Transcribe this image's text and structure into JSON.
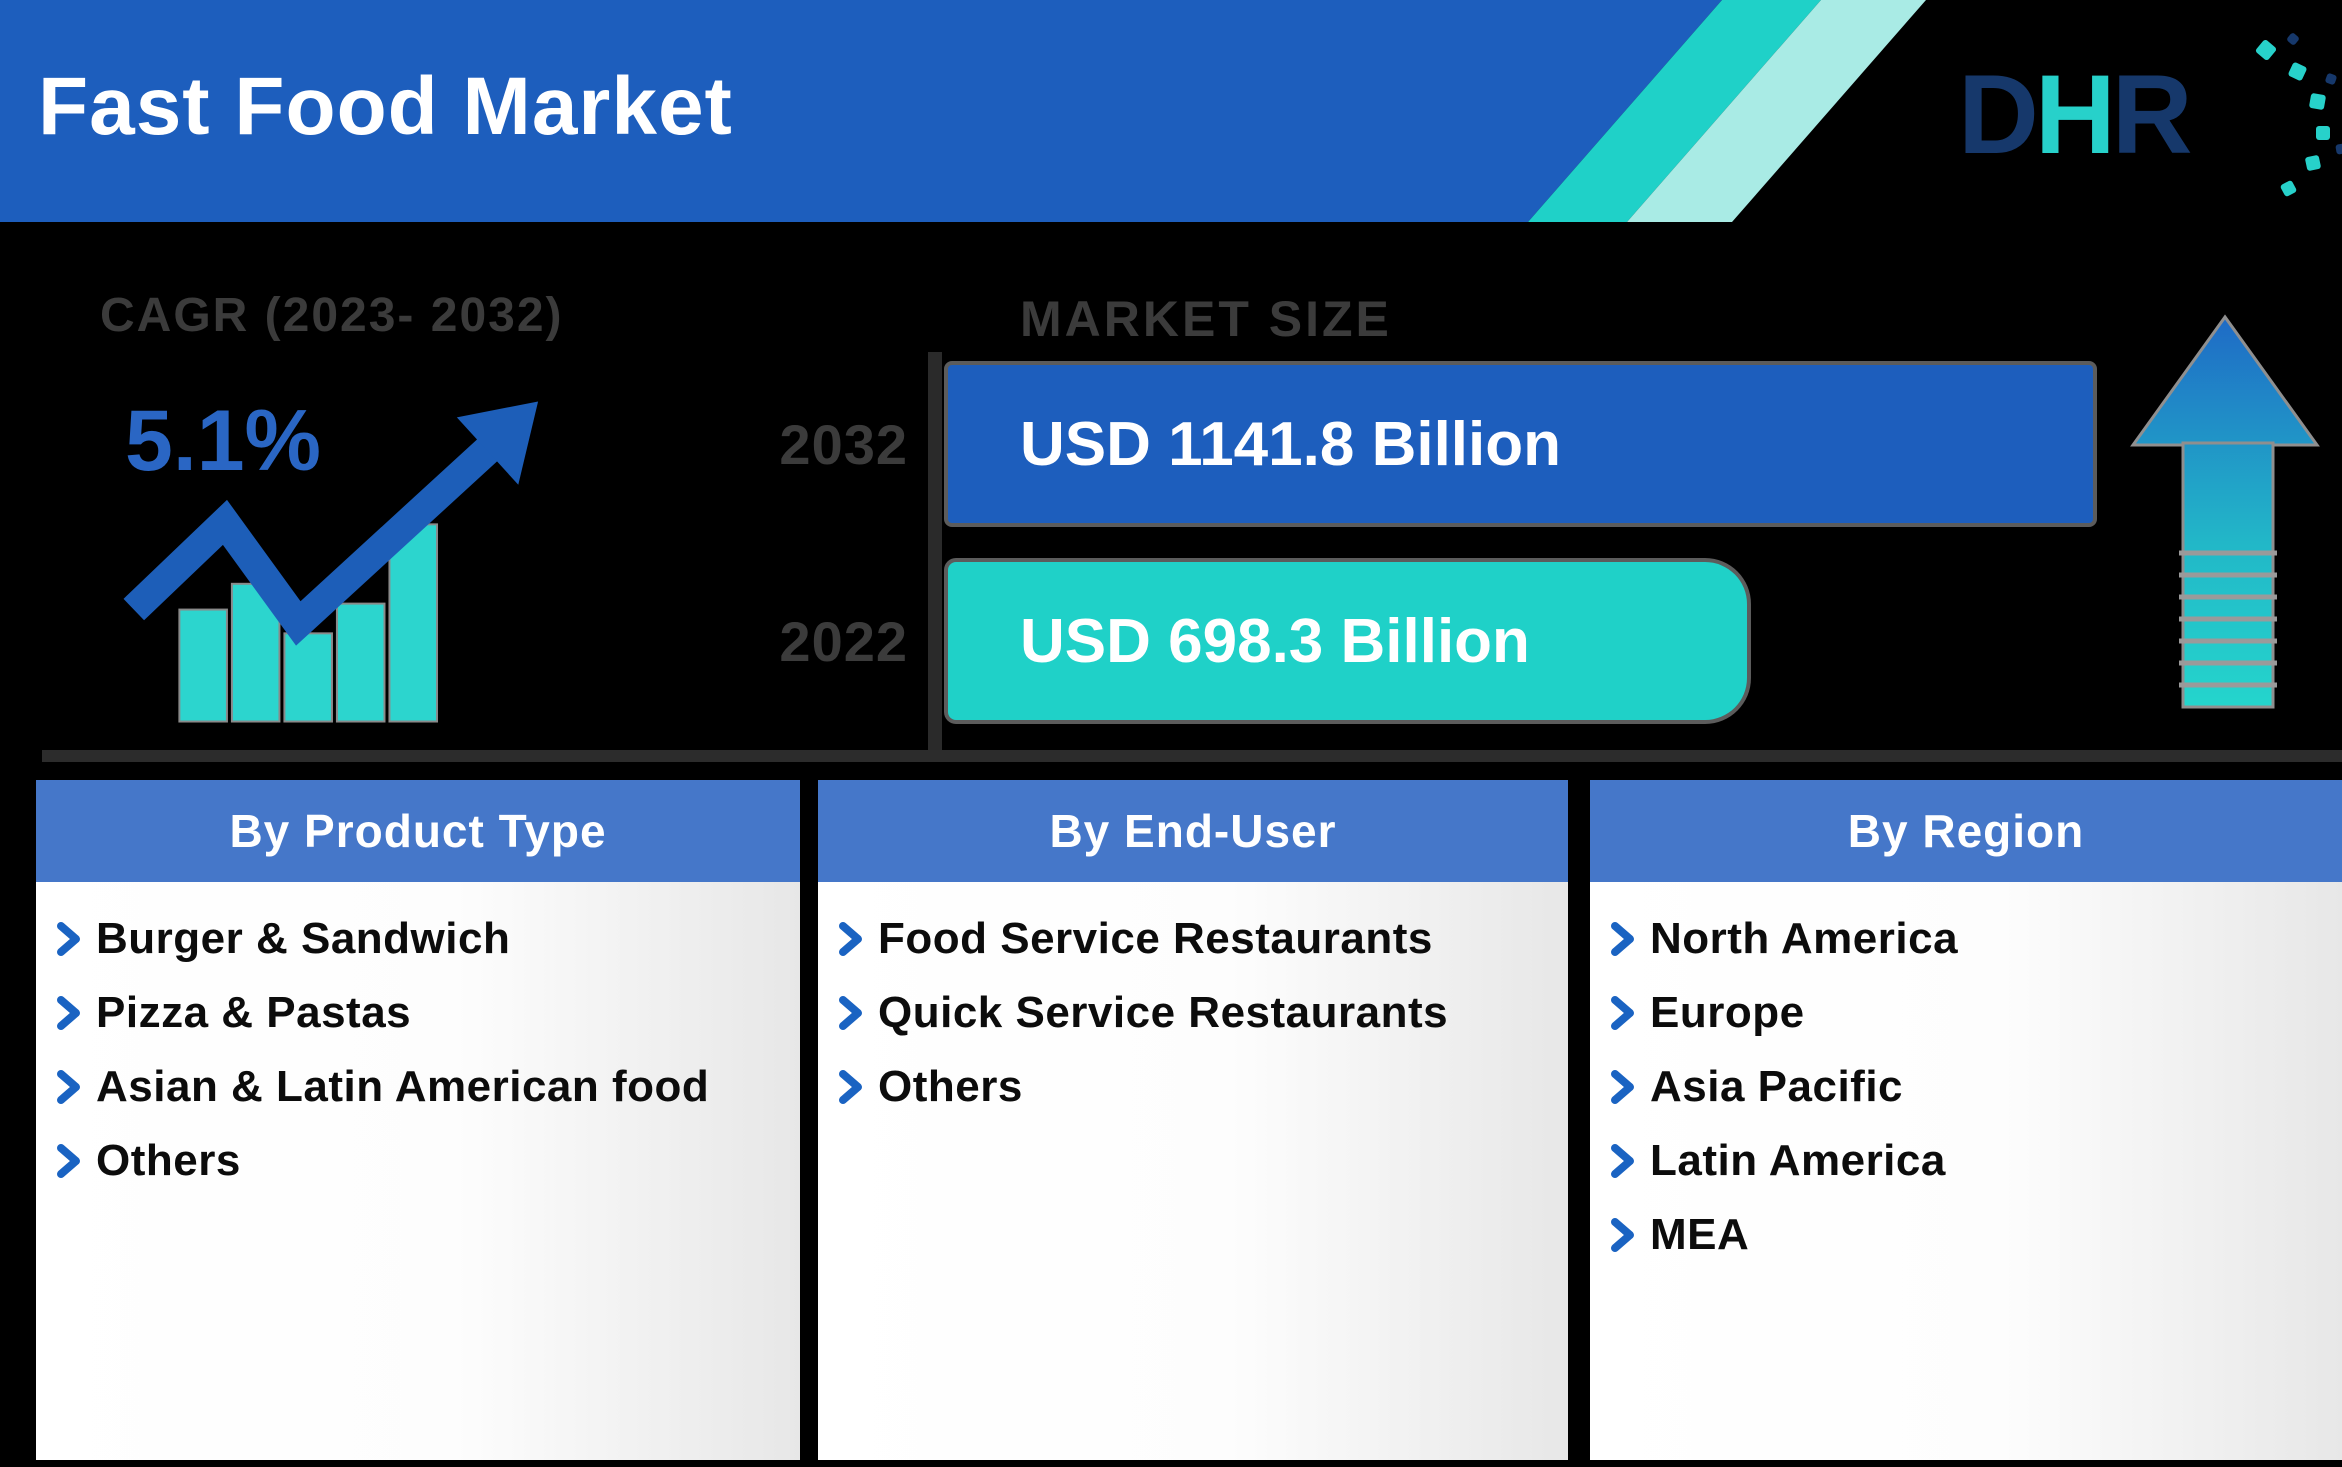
{
  "header": {
    "title": "Fast Food Market",
    "logo": {
      "d": "D",
      "h": "H",
      "r": "R"
    }
  },
  "cagr": {
    "label": "CAGR (2023- 2032)",
    "value": "5.1%"
  },
  "market_size": {
    "heading": "MARKET SIZE",
    "bars": [
      {
        "year": "2032",
        "value": "USD 1141.8 Billion"
      },
      {
        "year": "2022",
        "value": "USD 698.3 Billion"
      }
    ]
  },
  "columns": [
    {
      "title": "By Product Type",
      "items": [
        "Burger & Sandwich",
        "Pizza & Pastas",
        "Asian & Latin American food",
        "Others"
      ]
    },
    {
      "title": "By End-User",
      "items": [
        "Food Service Restaurants",
        "Quick Service Restaurants",
        "Others"
      ]
    },
    {
      "title": "By Region",
      "items": [
        "North America",
        "Europe",
        "Asia Pacific",
        "Latin America",
        "MEA"
      ]
    }
  ],
  "colors": {
    "banner_blue": "#1d5ebd",
    "bar_blue": "#1d5ebd",
    "bar_teal": "#1fd1c8",
    "stripe_light_teal": "#a9ebe5",
    "column_header_blue": "#4577c9",
    "chevron": "#1a63c2",
    "muted_text": "#3b3b3b",
    "logo_navy": "#16386b",
    "logo_teal": "#27d1ca"
  },
  "chart_data": {
    "type": "bar",
    "orientation": "horizontal",
    "title": "MARKET SIZE",
    "categories": [
      "2032",
      "2022"
    ],
    "values": [
      1141.8,
      698.3
    ],
    "unit": "USD Billion",
    "value_labels": [
      "USD 1141.8 Billion",
      "USD 698.3 Billion"
    ],
    "bar_colors": [
      "#1d5ebd",
      "#1fd1c8"
    ],
    "annotations": {
      "cagr_label": "CAGR (2023- 2032)",
      "cagr_value": "5.1%"
    },
    "legend_position": "none",
    "grid": false
  }
}
